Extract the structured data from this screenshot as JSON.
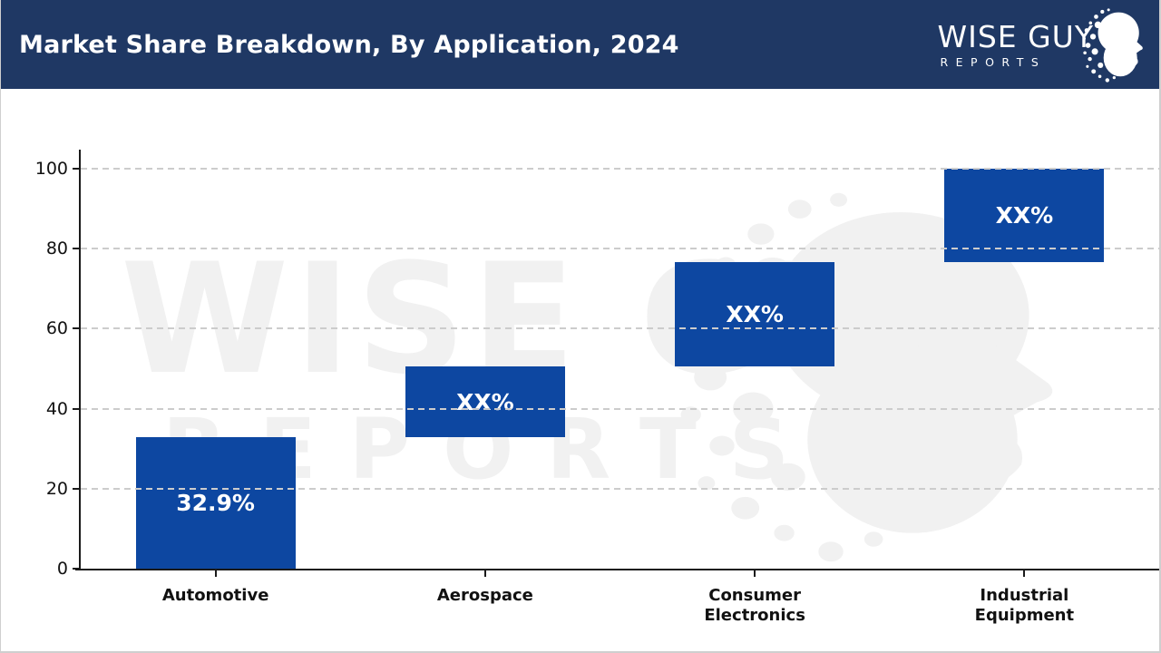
{
  "header": {
    "title": "Market Share Breakdown, By Application, 2024",
    "logo": {
      "name": "WISE GUY",
      "sub": "REPORTS"
    }
  },
  "watermark": {
    "line1": "WISE GUY",
    "line2": "REPORTS"
  },
  "colors": {
    "header_bg": "#1f3864",
    "bar": "#0d47a1",
    "grid": "#cccccc",
    "axis": "#1a1a1a",
    "bar_label": "#ffffff",
    "watermark": "#f1f1f1"
  },
  "chart_data": {
    "type": "bar",
    "subtype": "waterfall-breakdown",
    "title": "Market Share Breakdown, By Application, 2024",
    "xlabel": "",
    "ylabel": "",
    "ylim": [
      0,
      104.8
    ],
    "yticks": [
      0,
      20,
      40,
      60,
      80,
      100
    ],
    "grid": "dashed-horizontal, drawn over bars",
    "legend": null,
    "categories": [
      "Automotive",
      "Aerospace",
      "Consumer\nElectronics",
      "Industrial\nEquipment"
    ],
    "segments": [
      {
        "category": "Automotive",
        "start": 0,
        "end": 32.9,
        "label": "32.9%"
      },
      {
        "category": "Aerospace",
        "start": 32.9,
        "end": 50.5,
        "label": "XX%"
      },
      {
        "category": "Consumer Electronics",
        "start": 50.5,
        "end": 76.7,
        "label": "XX%"
      },
      {
        "category": "Industrial Equipment",
        "start": 76.7,
        "end": 100,
        "label": "XX%"
      }
    ]
  }
}
